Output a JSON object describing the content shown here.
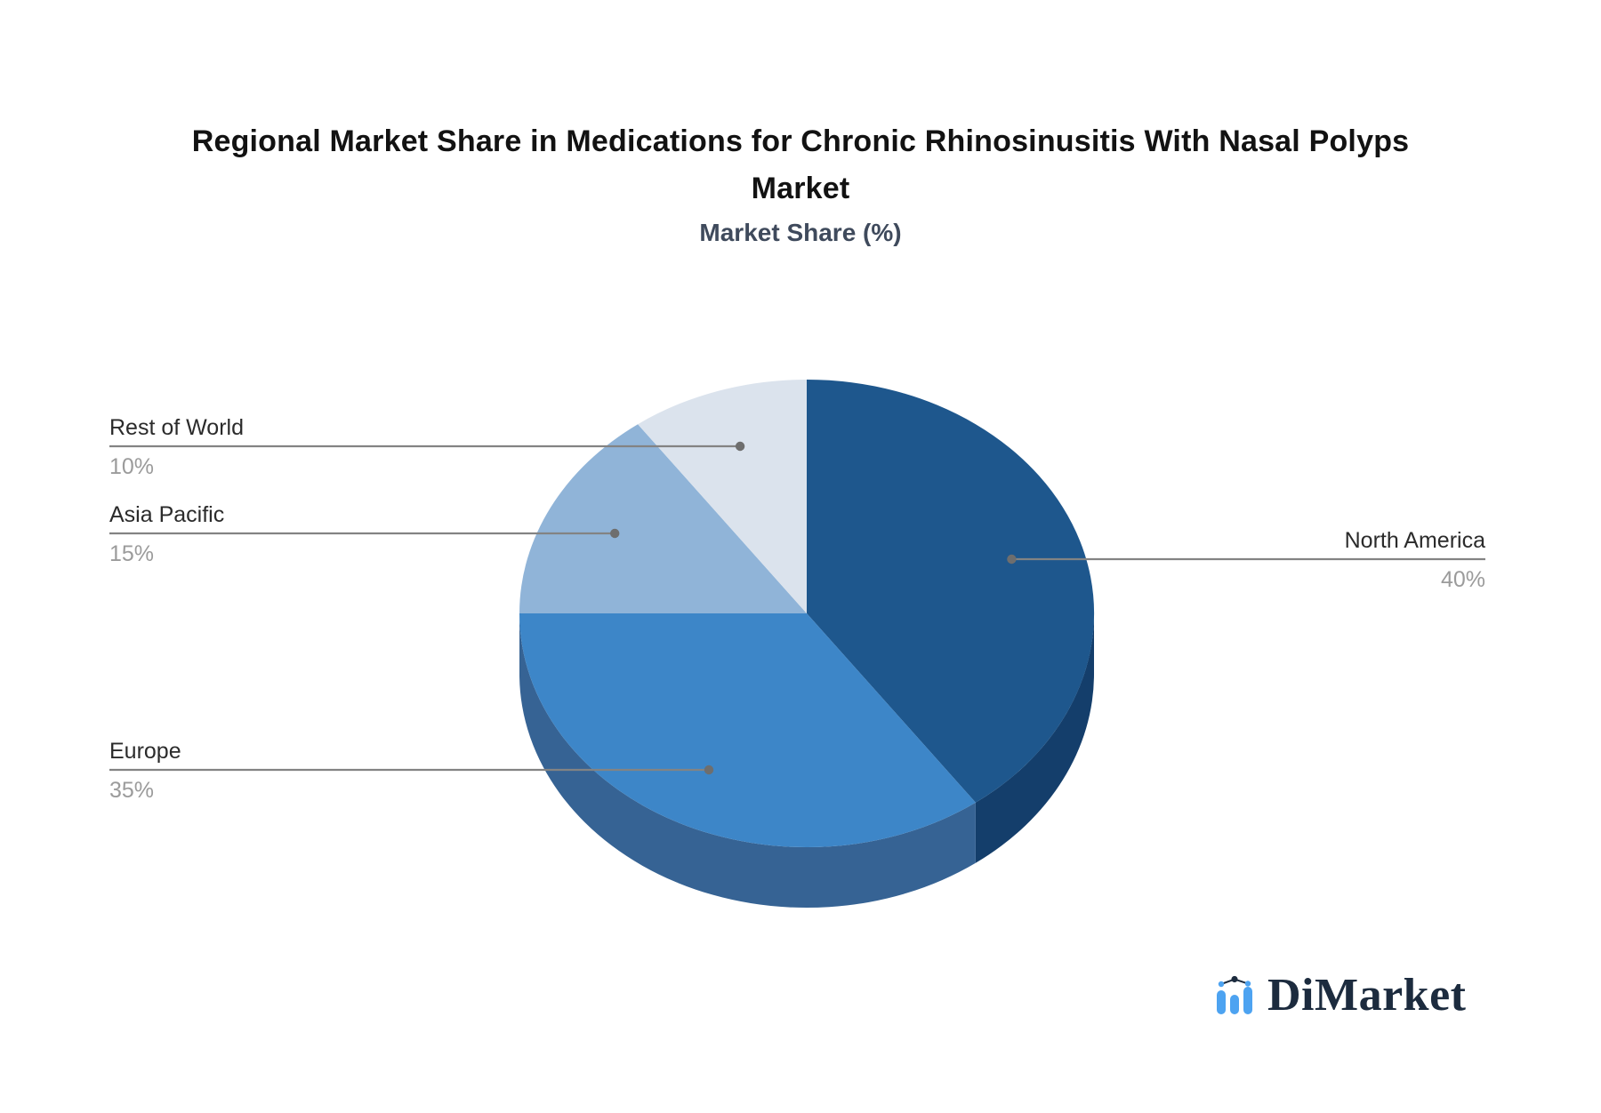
{
  "page": {
    "background": "#FFFFFF"
  },
  "header": {
    "title_line1": "Regional Market Share in Medications for Chronic Rhinosinusitis With Nasal Polyps",
    "title_line2": "Market",
    "subtitle": "Market Share (%)"
  },
  "chart_data": {
    "type": "pie",
    "title": "Regional Market Share in Medications for Chronic Rhinosinusitis With Nasal Polyps Market",
    "subtitle": "Market Share (%)",
    "unit": "percent",
    "style_3d": true,
    "start_angle": "12-oclock",
    "direction": "clockwise",
    "labels": "external-callouts",
    "slices": [
      {
        "label": "North America",
        "value": 40,
        "display_value": "40%",
        "color": "#1E578D",
        "side_color": "#143E6B"
      },
      {
        "label": "Europe",
        "value": 35,
        "display_value": "35%",
        "color": "#3D86C8",
        "side_color": "#366394"
      },
      {
        "label": "Asia Pacific",
        "value": 15,
        "display_value": "15%",
        "color": "#90B4D8",
        "side_color": "#7E9FC4"
      },
      {
        "label": "Rest of World",
        "value": 10,
        "display_value": "10%",
        "color": "#DBE3ED",
        "side_color": "#BFCBD9"
      }
    ]
  },
  "branding": {
    "name": "DiMarket",
    "icon": "mini-bar-chart"
  },
  "style": {
    "title_color": "#121212",
    "subtitle_color": "#3F4A5C",
    "label_color": "#2B2B2B",
    "value_color": "#9B9B9B",
    "callout_line_color": "#838383",
    "callout_dot_color": "#6E6E6E",
    "logo_text_color": "#1C2B3E",
    "logo_bar_color": "#4DA3F1"
  }
}
